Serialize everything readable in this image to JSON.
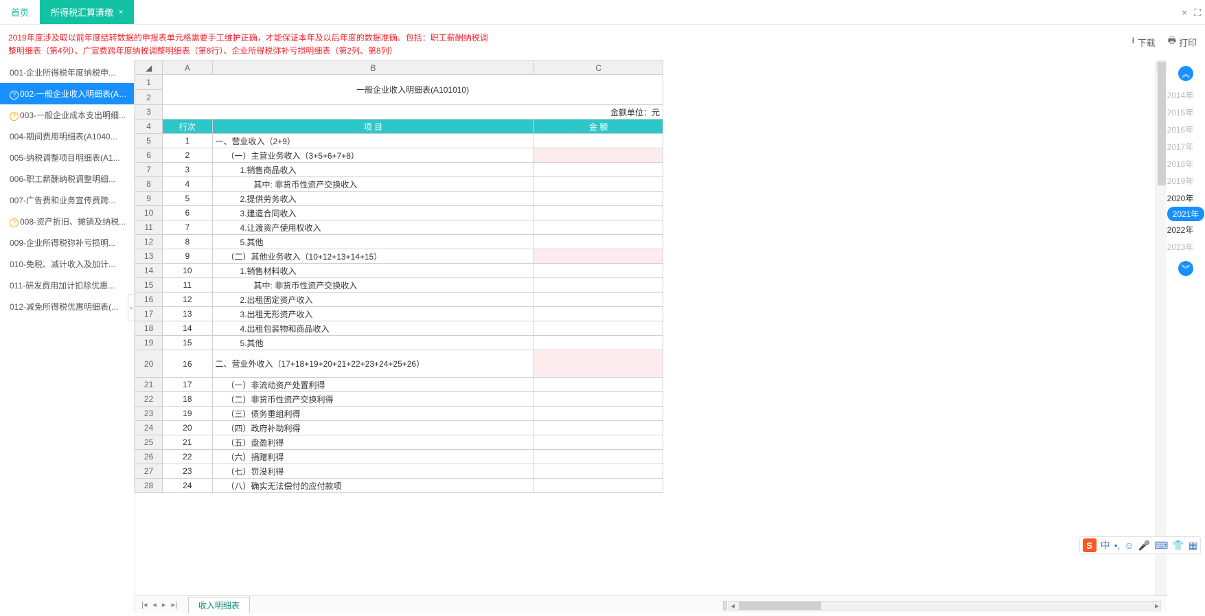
{
  "tabs": {
    "home": "首页",
    "active": "所得税汇算清缴"
  },
  "topIcons": {
    "close": "×",
    "expand": "⛶"
  },
  "warning": "2019年度涉及取以前年度结转数据的申报表单元格需要手工维护正确，才能保证本年及以后年度的数据准确。包括：职工薪酬纳税调整明细表（第4列）、广宣费跨年度纳税调整明细表（第8行）、企业所得税弥补亏损明细表（第2列、第8列）",
  "actions": {
    "download": "下载",
    "print": "打印"
  },
  "sidebar": [
    "001-企业所得税年度纳税申...",
    "002-一般企业收入明细表(A1...",
    "003-一般企业成本支出明细...",
    "004-期间费用明细表(A1040...",
    "005-纳税调整项目明细表(A1...",
    "006-职工薪酬纳税调整明细...",
    "007-广告费和业务宣传费跨...",
    "008-资产折旧、摊销及纳税...",
    "009-企业所得税弥补亏损明...",
    "010-免税、减计收入及加计...",
    "011-研发费用加计扣除优惠...",
    "012-减免所得税优惠明细表(..."
  ],
  "qmarkRows": [
    1,
    2,
    7
  ],
  "sheet": {
    "title": "一般企业收入明细表(A101010)",
    "unit": "金额单位：元",
    "colHead": {
      "A": "A",
      "B": "B",
      "C": "C"
    },
    "headers": {
      "rownum": "行次",
      "item": "项   目",
      "amount": "金   额"
    },
    "tabName": "收入明细表",
    "rows": [
      {
        "n": "1",
        "t": "一、营业收入（2+9）",
        "ind": 0,
        "hl": false
      },
      {
        "n": "2",
        "t": "（一）主营业务收入（3+5+6+7+8）",
        "ind": 1,
        "hl": true
      },
      {
        "n": "3",
        "t": "1.销售商品收入",
        "ind": 2,
        "hl": false
      },
      {
        "n": "4",
        "t": "其中: 非货币性资产交换收入",
        "ind": 3,
        "hl": false
      },
      {
        "n": "5",
        "t": "2.提供劳务收入",
        "ind": 2,
        "hl": false
      },
      {
        "n": "6",
        "t": "3.建造合同收入",
        "ind": 2,
        "hl": false
      },
      {
        "n": "7",
        "t": "4.让渡资产使用权收入",
        "ind": 2,
        "hl": false
      },
      {
        "n": "8",
        "t": "5.其他",
        "ind": 2,
        "hl": false
      },
      {
        "n": "9",
        "t": "（二）其他业务收入（10+12+13+14+15）",
        "ind": 1,
        "hl": true
      },
      {
        "n": "10",
        "t": "1.销售材料收入",
        "ind": 2,
        "hl": false
      },
      {
        "n": "11",
        "t": "其中: 非货币性资产交换收入",
        "ind": 3,
        "hl": false
      },
      {
        "n": "12",
        "t": "2.出租固定资产收入",
        "ind": 2,
        "hl": false
      },
      {
        "n": "13",
        "t": "3.出租无形资产收入",
        "ind": 2,
        "hl": false
      },
      {
        "n": "14",
        "t": "4.出租包装物和商品收入",
        "ind": 2,
        "hl": false
      },
      {
        "n": "15",
        "t": "5.其他",
        "ind": 2,
        "hl": false
      },
      {
        "n": "16",
        "t": "二、营业外收入（17+18+19+20+21+22+23+24+25+26）",
        "ind": 0,
        "hl": true,
        "big": true
      },
      {
        "n": "17",
        "t": "（一）非流动资产处置利得",
        "ind": 1,
        "hl": false
      },
      {
        "n": "18",
        "t": "（二）非货币性资产交换利得",
        "ind": 1,
        "hl": false
      },
      {
        "n": "19",
        "t": "（三）债务重组利得",
        "ind": 1,
        "hl": false
      },
      {
        "n": "20",
        "t": "（四）政府补助利得",
        "ind": 1,
        "hl": false
      },
      {
        "n": "21",
        "t": "（五）盘盈利得",
        "ind": 1,
        "hl": false
      },
      {
        "n": "22",
        "t": "（六）捐赠利得",
        "ind": 1,
        "hl": false
      },
      {
        "n": "23",
        "t": "（七）罚没利得",
        "ind": 1,
        "hl": false
      },
      {
        "n": "24",
        "t": "（八）确实无法偿付的应付款项",
        "ind": 1,
        "hl": false
      }
    ]
  },
  "years": {
    "list": [
      "2014年",
      "2015年",
      "2016年",
      "2017年",
      "2018年",
      "2019年",
      "2020年",
      "2021年",
      "2022年",
      "2023年"
    ],
    "available": [
      "2020年",
      "2021年",
      "2022年"
    ],
    "current": "2021年"
  },
  "ime": {
    "logo": "S",
    "lang": "中"
  }
}
